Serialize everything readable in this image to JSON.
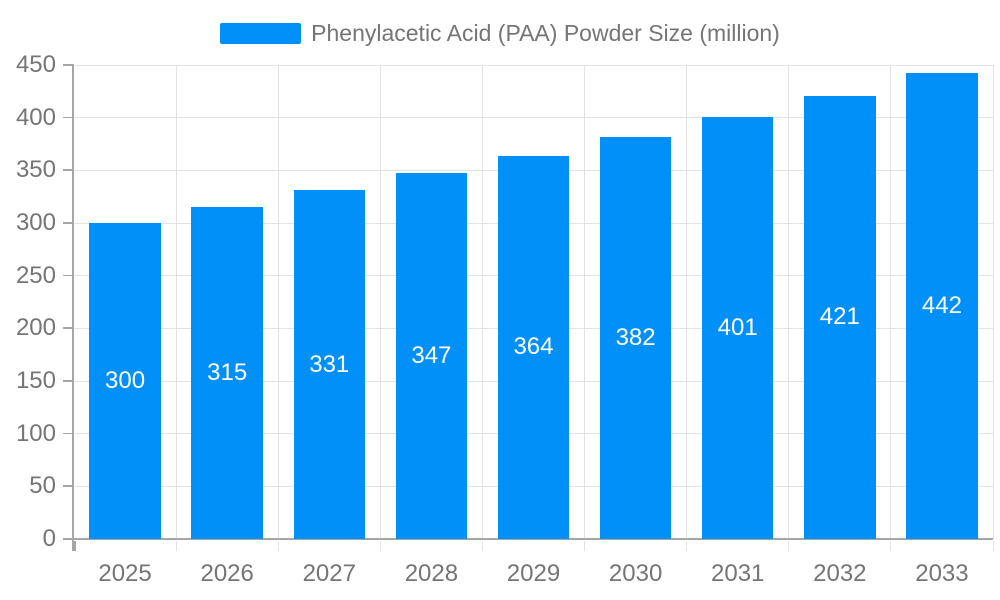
{
  "legend": {
    "label": "Phenylacetic Acid (PAA) Powder Size (million)",
    "swatch_color": "#0190F7"
  },
  "chart_data": {
    "type": "bar",
    "title": "Phenylacetic Acid (PAA) Powder Size (million)",
    "series": [
      {
        "name": "Phenylacetic Acid (PAA) Powder Size (million)",
        "values": [
          300,
          315,
          331,
          347,
          364,
          382,
          401,
          421,
          442
        ]
      }
    ],
    "categories": [
      "2025",
      "2026",
      "2027",
      "2028",
      "2029",
      "2030",
      "2031",
      "2032",
      "2033"
    ],
    "bar_labels": [
      "300",
      "315",
      "331",
      "347",
      "364",
      "382",
      "401",
      "421",
      "442"
    ],
    "xlabel": "",
    "ylabel": "",
    "ylim": [
      0,
      450
    ],
    "yticks": [
      0,
      50,
      100,
      150,
      200,
      250,
      300,
      350,
      400,
      450
    ],
    "grid": true,
    "legend_position": "top-center",
    "colors": {
      "bar": "#0190F7",
      "bar_label": "#ffffff",
      "axis_text": "#757575",
      "legend_text": "#757575",
      "grid_line": "#e3e3e3",
      "axis_line": "#a6a6a6",
      "background": "#ffffff"
    }
  }
}
